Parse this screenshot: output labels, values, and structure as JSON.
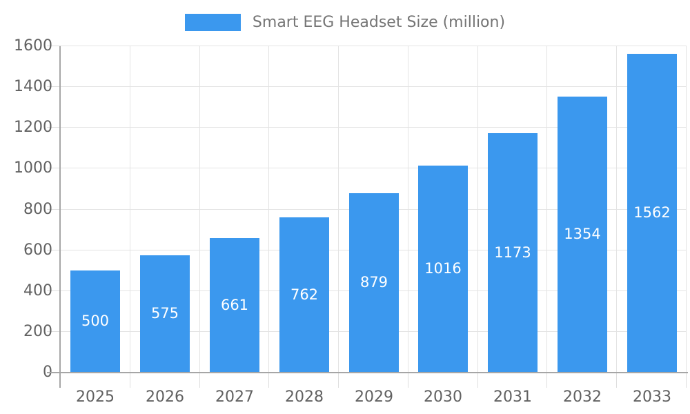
{
  "chart_data": {
    "type": "bar",
    "title": "Smart EEG Headset Size (million)",
    "categories": [
      "2025",
      "2026",
      "2027",
      "2028",
      "2029",
      "2030",
      "2031",
      "2032",
      "2033"
    ],
    "values": [
      500,
      575,
      661,
      762,
      879,
      1016,
      1173,
      1354,
      1562
    ],
    "xlabel": "",
    "ylabel": "",
    "ylim": [
      0,
      1600
    ],
    "ytick_step": 200,
    "grid": true,
    "legend_position": "top",
    "colors": {
      "bar": "#3B98EE",
      "bar_label": "#FFFFFF",
      "gridline": "#E3E3E3",
      "tick": "#DEDEDE",
      "axis": "#A6A6A6",
      "tick_text": "#616161",
      "legend_text": "#757575",
      "background": "#FFFFFF"
    }
  }
}
